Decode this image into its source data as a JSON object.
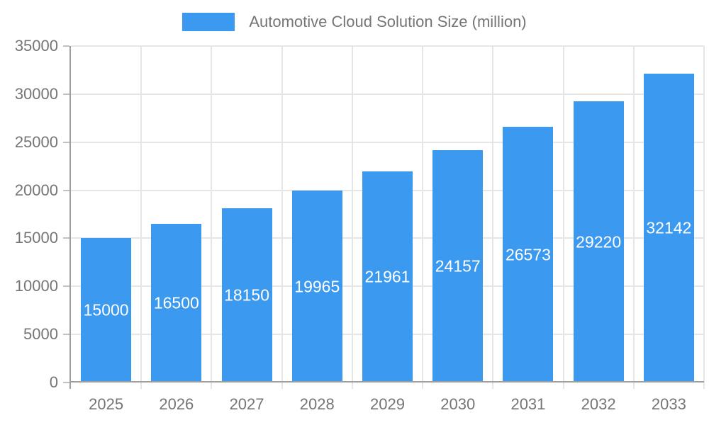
{
  "chart_data": {
    "type": "bar",
    "title": "Automotive Cloud Solution Size (million)",
    "legend": {
      "position": "top",
      "entries": [
        {
          "label": "Automotive Cloud Solution Size (million)",
          "color": "#3B99F0"
        }
      ]
    },
    "categories": [
      "2025",
      "2026",
      "2027",
      "2028",
      "2029",
      "2030",
      "2031",
      "2032",
      "2033"
    ],
    "series": [
      {
        "name": "Automotive Cloud Solution Size (million)",
        "values": [
          15000,
          16500,
          18150,
          19965,
          21961,
          24157,
          26573,
          29220,
          32142
        ]
      }
    ],
    "bar_value_labels": [
      "15000",
      "16500",
      "18150",
      "19965",
      "21961",
      "24157",
      "26573",
      "29220",
      "32142"
    ],
    "xlabel": "",
    "ylabel": "",
    "ylim": [
      0,
      35000
    ],
    "y_ticks": [
      0,
      5000,
      10000,
      15000,
      20000,
      25000,
      30000,
      35000
    ],
    "y_tick_labels": [
      "0",
      "5000",
      "10000",
      "15000",
      "20000",
      "25000",
      "30000",
      "35000"
    ],
    "grid": "both",
    "colors": {
      "bar": "#3B99F0",
      "bar_value_text": "#FFFFFF",
      "axis_text": "#757575",
      "axis_line": "#9E9E9E",
      "gridline": "#E6E6E6",
      "tick_mark": "#C2C2C2",
      "background": "#FFFFFF"
    }
  }
}
